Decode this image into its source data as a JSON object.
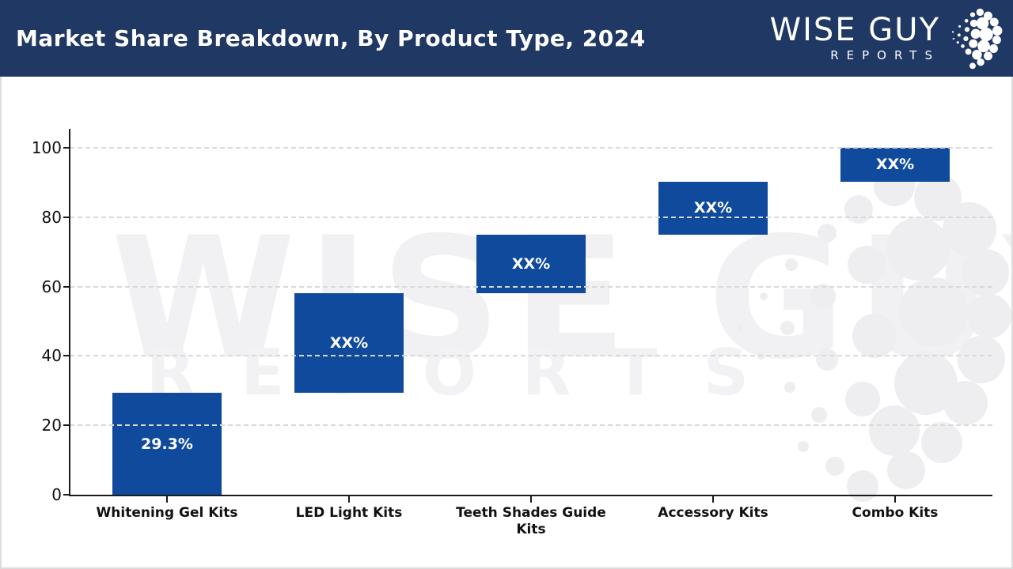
{
  "header": {
    "title": "Market Share Breakdown, By Product Type, 2024",
    "logo": {
      "line1": "WISE GUY",
      "line2": "REPORTS"
    }
  },
  "watermark": {
    "line1": "WISE GUY",
    "line2": "REPORTS"
  },
  "colors": {
    "header_bg": "#1f3864",
    "bar": "#0f4a9d",
    "bar_label": "#ffffff",
    "gridline": "#d9d9d9",
    "axis": "#1a1a1a",
    "watermark": "#f1f1f3"
  },
  "chart_data": {
    "type": "bar",
    "subtype": "waterfall",
    "title": "Market Share Breakdown, By Product Type, 2024",
    "categories": [
      "Whitening Gel Kits",
      "LED Light Kits",
      "Teeth Shades Guide Kits",
      "Accessory Kits",
      "Combo Kits"
    ],
    "bars": [
      {
        "start": 0,
        "end": 29.3,
        "label": "29.3%"
      },
      {
        "start": 29.3,
        "end": 58.0,
        "label": "XX%"
      },
      {
        "start": 58.0,
        "end": 75.0,
        "label": "XX%"
      },
      {
        "start": 75.0,
        "end": 90.3,
        "label": "XX%"
      },
      {
        "start": 90.3,
        "end": 100.0,
        "label": "XX%"
      }
    ],
    "ylim": [
      0,
      105
    ],
    "yticks": [
      0,
      20,
      40,
      60,
      80,
      100
    ],
    "xlabel": "",
    "ylabel": "",
    "grid": "horizontal-dashed",
    "legend": "none"
  }
}
